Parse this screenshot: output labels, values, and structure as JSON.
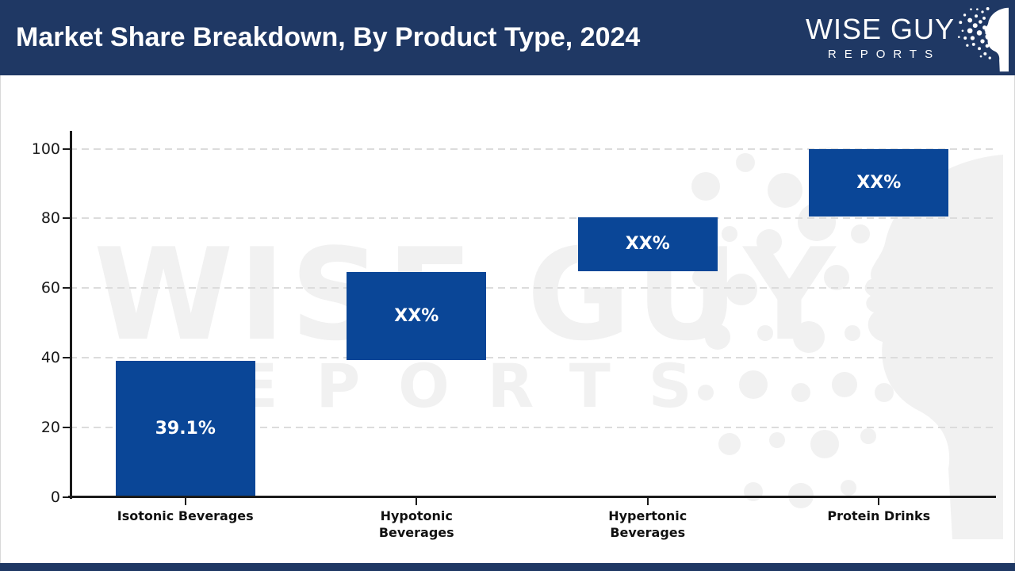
{
  "header": {
    "title": "Market Share Breakdown, By Product Type, 2024",
    "logo": {
      "line1": "WISE GUY",
      "line2": "REPORTS"
    }
  },
  "watermark": {
    "line1": "WISE GUY",
    "line2": "REPORTS"
  },
  "chart_data": {
    "type": "bar",
    "variant": "stacked-waterfall",
    "title": "Market Share Breakdown, By Product Type, 2024",
    "categories": [
      "Isotonic Beverages",
      "Hypotonic Beverages",
      "Hypertonic Beverages",
      "Protein Drinks"
    ],
    "category_label_lines": [
      [
        "Isotonic Beverages"
      ],
      [
        "Hypotonic",
        "Beverages"
      ],
      [
        "Hypertonic",
        "Beverages"
      ],
      [
        "Protein Drinks"
      ]
    ],
    "segments": [
      {
        "category": "Isotonic Beverages",
        "start": 0,
        "end": 39.1,
        "label": "39.1%"
      },
      {
        "category": "Hypotonic Beverages",
        "start": 39.4,
        "end": 64.6,
        "label": "XX%"
      },
      {
        "category": "Hypertonic Beverages",
        "start": 64.9,
        "end": 80.3,
        "label": "XX%"
      },
      {
        "category": "Protein Drinks",
        "start": 80.6,
        "end": 100,
        "label": "XX%"
      }
    ],
    "ylim": [
      0,
      100
    ],
    "yticks": [
      0,
      20,
      40,
      60,
      80,
      100
    ],
    "xlabel": "",
    "ylabel": "",
    "grid": "horizontal-dashed",
    "legend": "none"
  },
  "colors": {
    "header_bg": "#1f3864",
    "footer_bg": "#1f3864",
    "bar": "#0a4697",
    "bar_label": "#ffffff",
    "grid": "#dcdcdc",
    "axis": "#1a1a1a",
    "watermark": "#f1f1f1",
    "background": "#ffffff",
    "title_text": "#ffffff"
  }
}
